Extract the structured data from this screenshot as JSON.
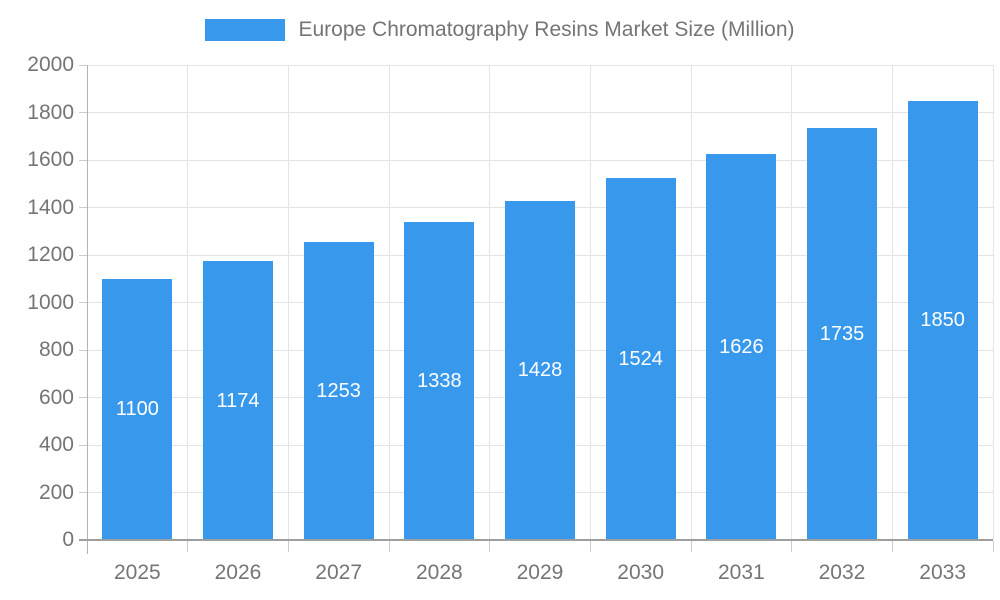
{
  "legend": {
    "label": "Europe Chromatography Resins Market Size (Million)"
  },
  "colors": {
    "bar": "#3899EC",
    "grid": "#E4E4E4",
    "axis_line": "#B3B3B3",
    "baseline": "#9E9E9E",
    "tick": "#CCCCCC",
    "tick_label": "#757575",
    "value_label": "#FFFFFF",
    "background": "#FFFFFF"
  },
  "chart_data": {
    "type": "bar",
    "title": "Europe Chromatography Resins Market Size (Million)",
    "categories": [
      "2025",
      "2026",
      "2027",
      "2028",
      "2029",
      "2030",
      "2031",
      "2032",
      "2033"
    ],
    "values": [
      1100,
      1174,
      1253,
      1338,
      1428,
      1524,
      1626,
      1735,
      1850
    ],
    "xlabel": "",
    "ylabel": "",
    "ylim": [
      0,
      2000
    ],
    "ytick_step": 200,
    "grid": true,
    "legend_position": "top",
    "value_labels": "inside-center"
  }
}
